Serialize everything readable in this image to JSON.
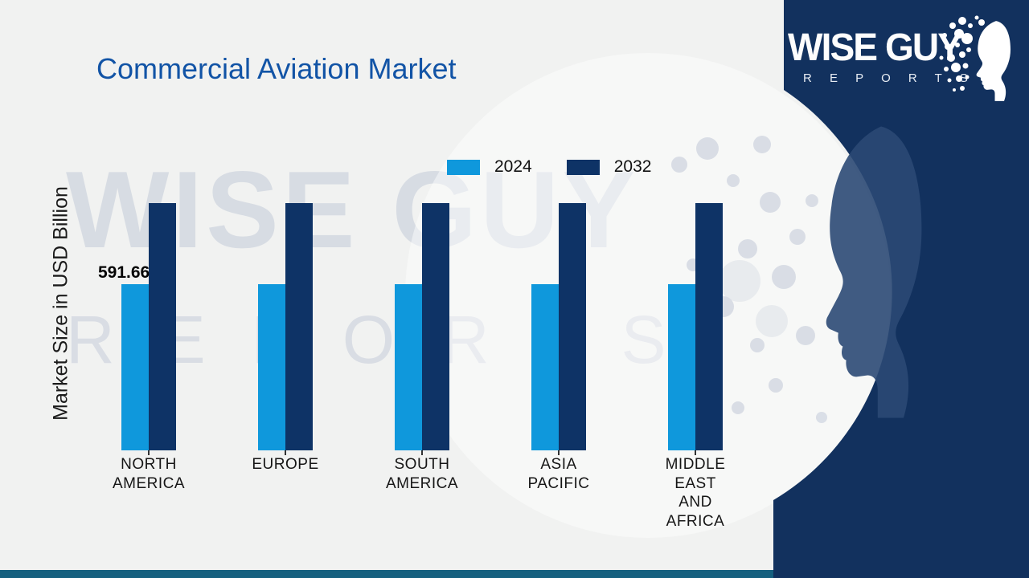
{
  "title": {
    "text": "Commercial Aviation Market",
    "color": "#1254a6"
  },
  "logo": {
    "name": "WISE GUY REPORTS",
    "line1": "WISE GUY",
    "line2": "R E P O R T S",
    "bg_color": "#12315e"
  },
  "watermark": {
    "line1": "WISE GUY",
    "line2": "REPORTS"
  },
  "chart": {
    "y_axis_label": "Market Size in USD Billion",
    "legend": [
      {
        "label": "2024",
        "color": "#0f98dc"
      },
      {
        "label": "2032",
        "color": "#0e3366"
      }
    ],
    "annotation_text": "591.66"
  },
  "chart_data": {
    "type": "bar",
    "title": "Commercial Aviation Market",
    "xlabel": "",
    "ylabel": "Market Size in USD Billion",
    "grid": false,
    "legend_position": "top",
    "categories": [
      "NORTH AMERICA",
      "EUROPE",
      "SOUTH AMERICA",
      "ASIA PACIFIC",
      "MIDDLE EAST AND AFRICA"
    ],
    "category_display": [
      "NORTH\nAMERICA",
      "EUROPE",
      "SOUTH\nAMERICA",
      "ASIA\nPACIFIC",
      "MIDDLE\nEAST\nAND\nAFRICA"
    ],
    "series": [
      {
        "name": "2024",
        "color": "#0f98dc",
        "values": [
          591.66,
          591.66,
          591.66,
          591.66,
          591.66
        ]
      },
      {
        "name": "2032",
        "color": "#0e3366",
        "values": [
          880,
          880,
          880,
          880,
          880
        ]
      }
    ],
    "value_labels": [
      {
        "category_index": 0,
        "series_index": 0,
        "text": "591.66"
      }
    ],
    "note": "Only the North America 2024 bar is labeled (591.66 USD Billion); all bars share identical heights per series, 2032 values are unlabeled estimates from bar proportions.",
    "ylim": [
      0,
      950
    ]
  },
  "colors": {
    "background": "#f1f2f1",
    "bar_2024": "#0f98dc",
    "bar_2032": "#0e3366",
    "right_panel_navy": "#12315e",
    "bottom_strip_teal": "#16607f",
    "watermark_gray": "#c7ceda"
  }
}
